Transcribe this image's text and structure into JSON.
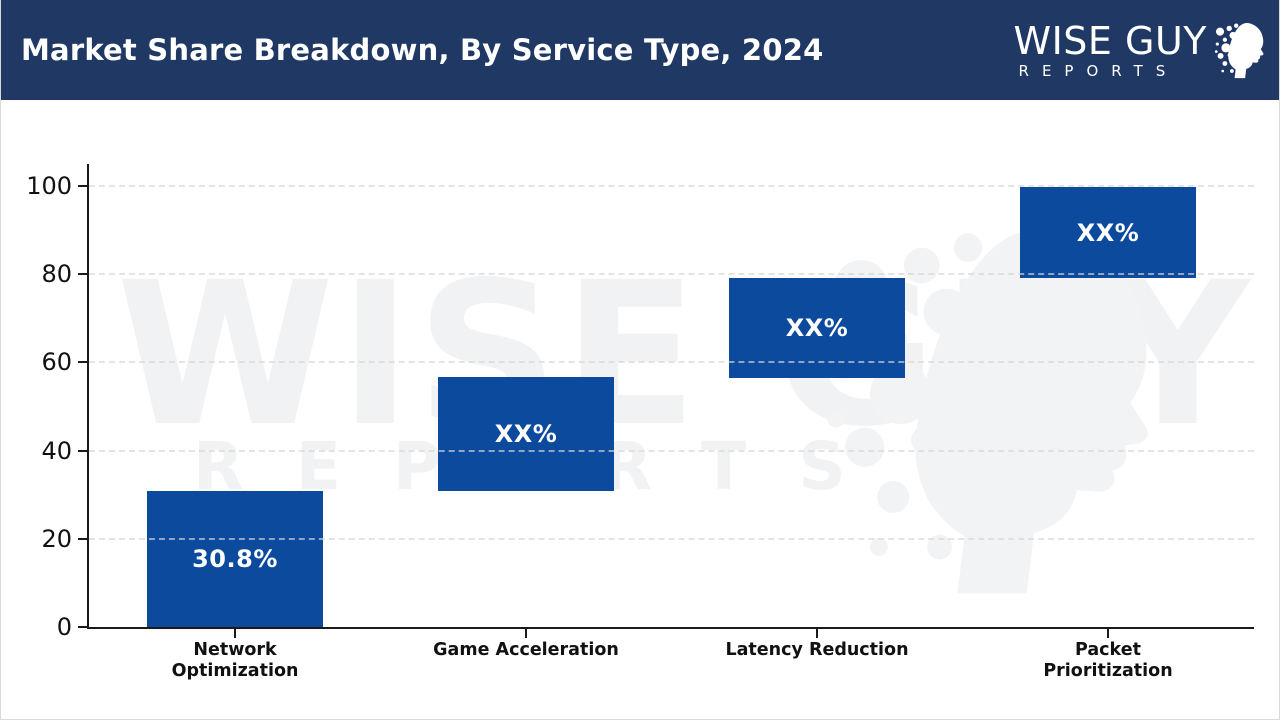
{
  "header": {
    "title": "Market Share Breakdown, By Service Type, 2024",
    "bg_color": "#1f3864",
    "logo": {
      "wordmark": "WISE GUY",
      "subtitle": "REPORTS"
    }
  },
  "watermark": {
    "wordmark": "WISE GUY",
    "subtitle": "REPORTS"
  },
  "chart_data": {
    "type": "bar",
    "subtype": "waterfall",
    "title": "Market Share Breakdown, By Service Type, 2024",
    "categories": [
      "Network\nOptimization",
      "Game Acceleration",
      "Latency Reduction",
      "Packet\nPrioritization"
    ],
    "segments": [
      {
        "category": "Network Optimization",
        "start": 0,
        "end": 30.8,
        "label": "30.8%"
      },
      {
        "category": "Game Acceleration",
        "start": 30.8,
        "end": 56.6,
        "label": "XX%"
      },
      {
        "category": "Latency Reduction",
        "start": 56.6,
        "end": 79.2,
        "label": "XX%"
      },
      {
        "category": "Packet Prioritization",
        "start": 79.2,
        "end": 99.8,
        "label": "XX%"
      }
    ],
    "yticks": [
      0,
      20,
      40,
      60,
      80,
      100
    ],
    "ylim": [
      0,
      105
    ],
    "xlabel": "",
    "ylabel": "",
    "bar_color": "#0c4a9e",
    "grid": "horizontal-dashed",
    "legend": null
  }
}
